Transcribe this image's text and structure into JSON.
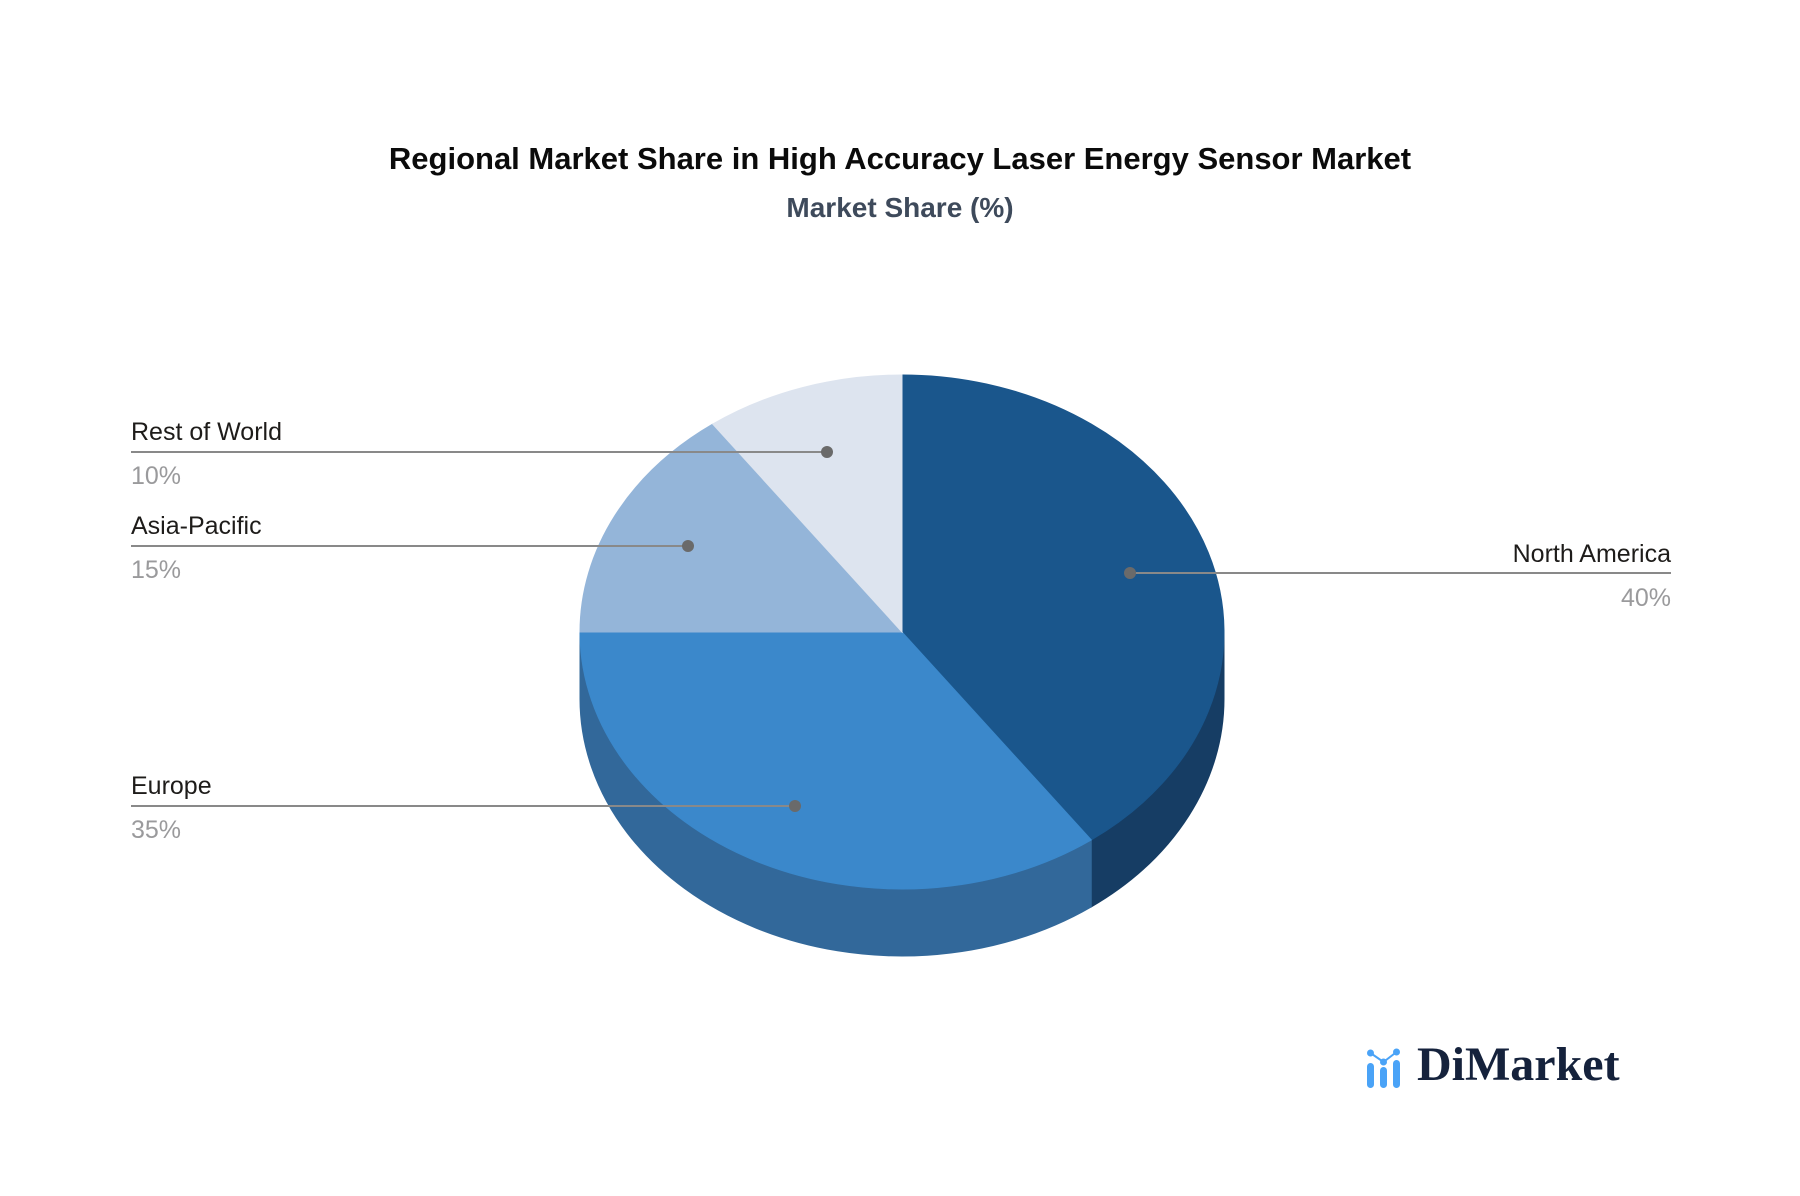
{
  "title": "Regional Market Share in High Accuracy Laser Energy Sensor Market",
  "subtitle": "Market Share (%)",
  "brand": {
    "name": "DiMarket",
    "icon": "bar-line-chart-icon"
  },
  "colors": {
    "background": "#ffffff",
    "title_text": "#0b0b0b",
    "subtitle_text": "#3e4a5b",
    "label_text": "#1e1c1a",
    "percent_text": "#9a9a9c",
    "leader_line": "#898989",
    "leader_dot": "#6a6a6a",
    "brand_text": "#15223c",
    "brand_accent": "#4aa3f7"
  },
  "chart_data": {
    "type": "pie",
    "style": "3d",
    "title": "Regional Market Share in High Accuracy Laser Energy Sensor Market",
    "subtitle": "Market Share (%)",
    "unit": "%",
    "direction": "clockwise",
    "start_angle_deg": 0,
    "legend_position": "callout-labels",
    "categories": [
      "North America",
      "Europe",
      "Asia-Pacific",
      "Rest of World"
    ],
    "values": [
      40,
      35,
      15,
      10
    ],
    "labels": [
      "40%",
      "35%",
      "15%",
      "10%"
    ],
    "slice_colors": [
      "#1a568c",
      "#3b88cb",
      "#94b5d9",
      "#dde4ef"
    ],
    "side_colors": [
      "#163d64",
      "#32689a",
      "#7e9cbd",
      "#c4ccd9"
    ]
  }
}
